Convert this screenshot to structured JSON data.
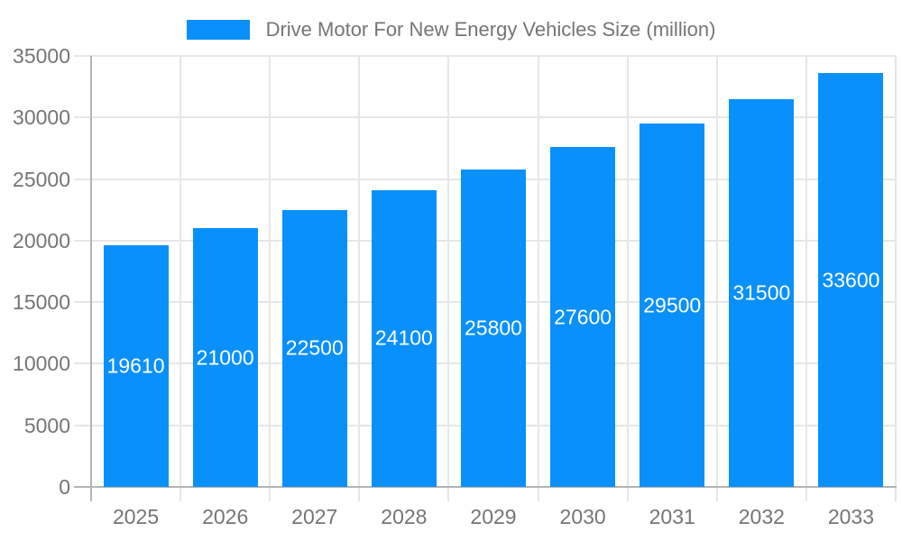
{
  "chart_data": {
    "type": "bar",
    "title": "",
    "categories": [
      "2025",
      "2026",
      "2027",
      "2028",
      "2029",
      "2030",
      "2031",
      "2032",
      "2033"
    ],
    "series": [
      {
        "name": "Drive Motor For New Energy Vehicles Size (million)",
        "values": [
          19610,
          21000,
          22500,
          24100,
          25800,
          27600,
          29500,
          31500,
          33600
        ]
      }
    ],
    "xlabel": "",
    "ylabel": "",
    "ylim": [
      0,
      35000
    ],
    "yticks": [
      0,
      5000,
      10000,
      15000,
      20000,
      25000,
      30000,
      35000
    ],
    "grid": true,
    "legend_position": "top-center",
    "value_labels": "inside-bars-centered"
  },
  "colors": {
    "bar": "#0990fb",
    "grid": "#e6e6e6",
    "axis": "#b3b3b3",
    "label_text": "#757575",
    "bar_value_text": "#ffffff",
    "background": "#ffffff"
  }
}
